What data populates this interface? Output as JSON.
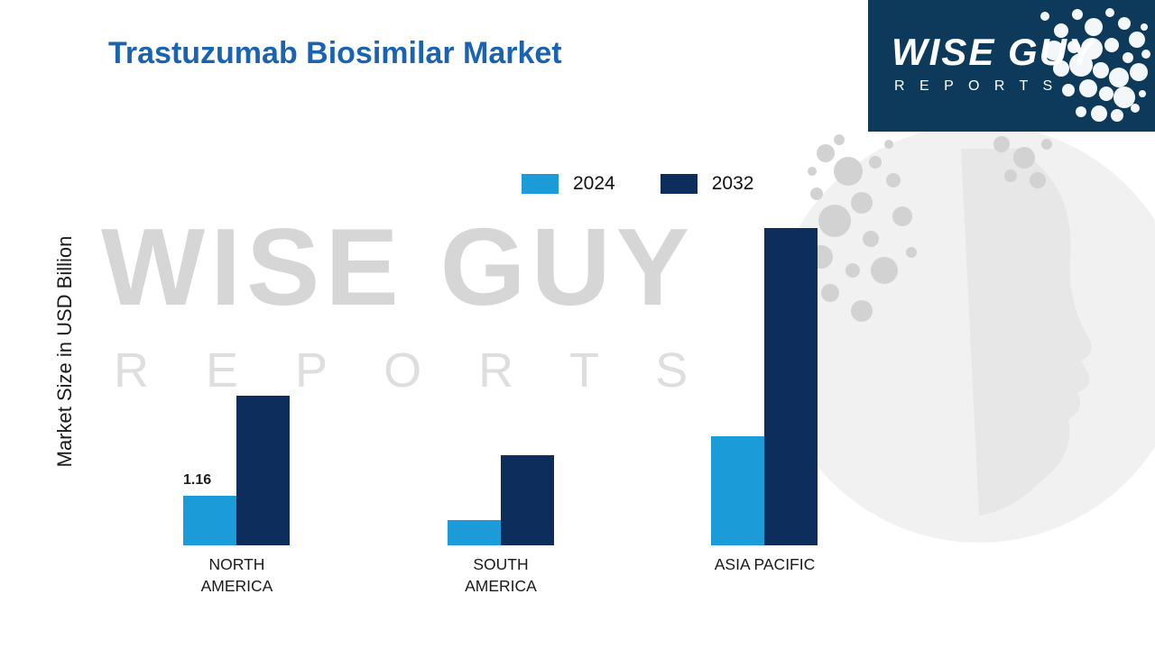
{
  "page": {
    "title": "Trastuzumab Biosimilar Market"
  },
  "logo": {
    "line1": "WISE GUY",
    "line2": "R E P O R T S"
  },
  "watermark": {
    "line1": "WISE GUY",
    "line2": "R E P O R T S"
  },
  "colors": {
    "title": "#1a63b2",
    "bar_2024": "#1b9cd8",
    "bar_2032": "#0d2d5c",
    "logo_bg": "#0d3a5a",
    "watermark_gray": "#d6d6d6"
  },
  "chart_data": {
    "type": "bar",
    "title": "Trastuzumab Biosimilar Market",
    "ylabel": "Market Size in USD Billion",
    "categories": [
      "NORTH AMERICA",
      "SOUTH AMERICA",
      "ASIA PACIFIC"
    ],
    "series": [
      {
        "name": "2024",
        "color": "#1b9cd8",
        "values": [
          1.16,
          0.58,
          2.55
        ]
      },
      {
        "name": "2032",
        "color": "#0d2d5c",
        "values": [
          3.5,
          2.1,
          7.4
        ]
      }
    ],
    "bar_labels": [
      {
        "series": 0,
        "category": 0,
        "text": "1.16"
      }
    ],
    "ylim": [
      0,
      8
    ],
    "grid": false,
    "legend_position": "top-center"
  }
}
